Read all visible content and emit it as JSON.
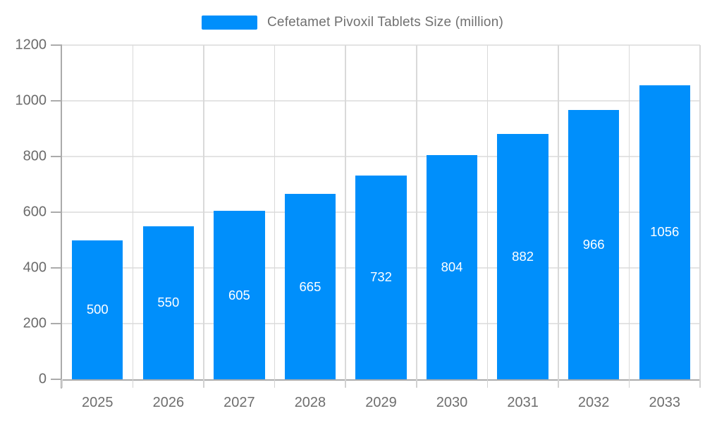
{
  "legend": {
    "label": "Cefetamet Pivoxil Tablets Size (million)",
    "swatch_color": "#008FFB"
  },
  "chart_data": {
    "type": "bar",
    "title": "Cefetamet Pivoxil Tablets Size (million)",
    "series_name": "Cefetamet Pivoxil Tablets Size (million)",
    "categories": [
      "2025",
      "2026",
      "2027",
      "2028",
      "2029",
      "2030",
      "2031",
      "2032",
      "2033"
    ],
    "values": [
      500,
      550,
      605,
      665,
      732,
      804,
      882,
      966,
      1056
    ],
    "value_labels": [
      "500",
      "550",
      "605",
      "665",
      "732",
      "804",
      "882",
      "966",
      "1056"
    ],
    "xlabel": "",
    "ylabel": "",
    "ylim": [
      0,
      1200
    ],
    "yticks": [
      0,
      200,
      400,
      600,
      800,
      1000,
      1200
    ],
    "ytick_labels": [
      "0",
      "200",
      "400",
      "600",
      "800",
      "1000",
      "1200"
    ],
    "grid": true,
    "legend_position": "top",
    "bar_color": "#008FFB",
    "value_label_color": "#ffffff"
  }
}
